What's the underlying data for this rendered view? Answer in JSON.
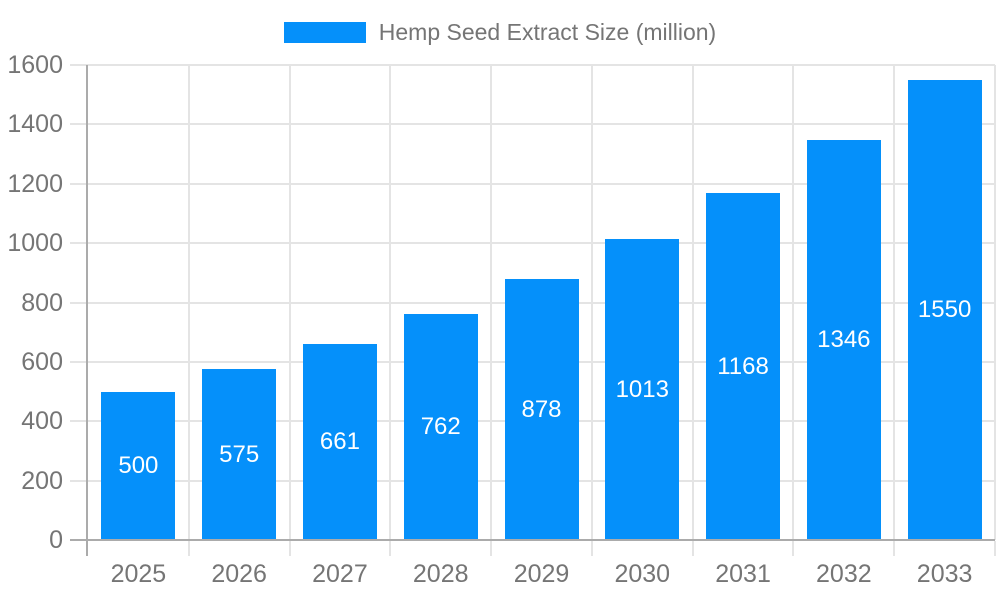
{
  "legend": {
    "label": "Hemp Seed Extract Size (million)"
  },
  "chart_data": {
    "type": "bar",
    "title": "Hemp Seed Extract Size (million)",
    "categories": [
      "2025",
      "2026",
      "2027",
      "2028",
      "2029",
      "2030",
      "2031",
      "2032",
      "2033"
    ],
    "values": [
      500,
      575,
      661,
      762,
      878,
      1013,
      1168,
      1346,
      1550
    ],
    "value_labels_shown": true,
    "xlabel": "",
    "ylabel": "",
    "ylim": [
      0,
      1600
    ],
    "yticks": [
      0,
      200,
      400,
      600,
      800,
      1000,
      1200,
      1400,
      1600
    ],
    "grid": true,
    "legend_position": "top-center",
    "colors": {
      "bar": "#0590fa",
      "value_label": "#ffffff",
      "axis_text": "#757575",
      "grid_line": "#e4e4e4",
      "axis_line": "#ababab",
      "background": "#ffffff"
    }
  }
}
